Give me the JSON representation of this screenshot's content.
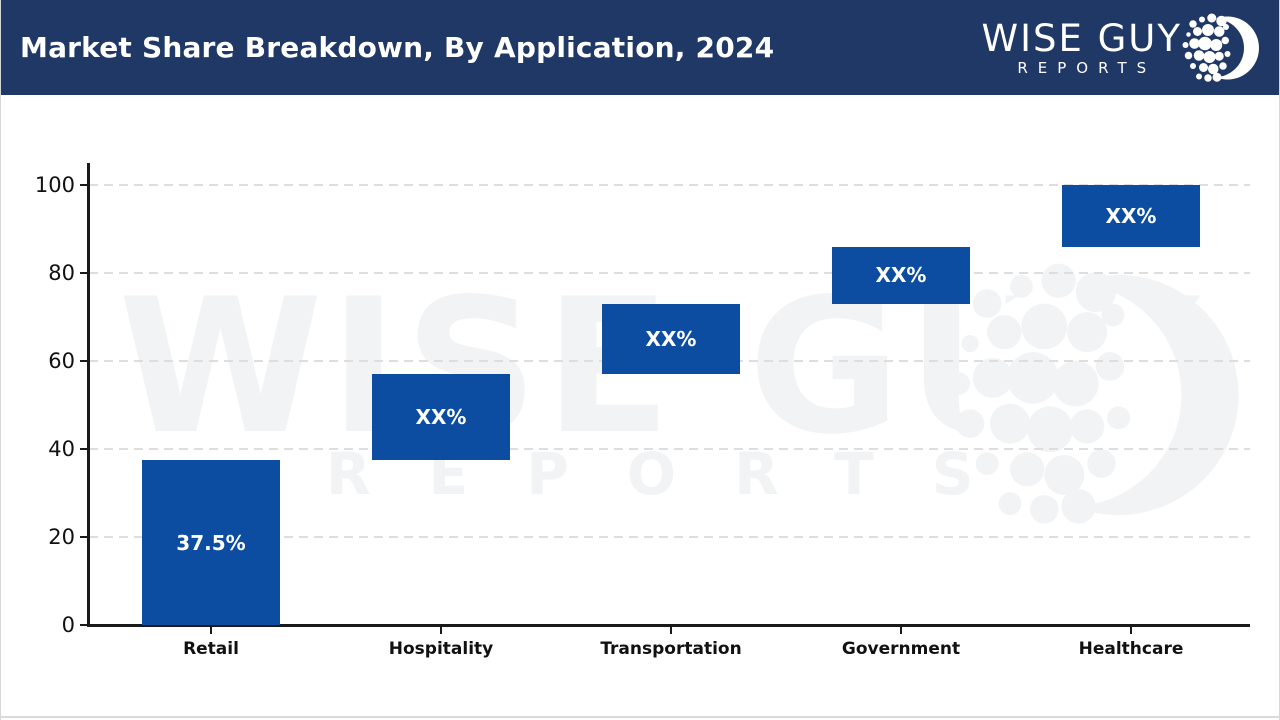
{
  "header": {
    "bg_color": "#1F3866",
    "title": "Market Share Breakdown, By Application, 2024",
    "logo": {
      "line1": "WISE GUY",
      "line2": "REPORTS"
    }
  },
  "watermark": {
    "line1": "WISE GUY",
    "line2": "REPORTS",
    "color": "#f2f3f5"
  },
  "frame": {
    "border_color": "#d6d6d6",
    "bottom_rule_color": "#d9d9d9"
  },
  "chart_data": {
    "type": "bar",
    "subtype": "waterfall",
    "title": "Market Share Breakdown, By Application, 2024",
    "categories": [
      "Retail",
      "Hospitality",
      "Transportation",
      "Government",
      "Healthcare"
    ],
    "segments": [
      {
        "category": "Retail",
        "start": 0,
        "end": 37.5,
        "label": "37.5%"
      },
      {
        "category": "Hospitality",
        "start": 37.5,
        "end": 57,
        "label": "XX%"
      },
      {
        "category": "Transportation",
        "start": 57,
        "end": 73,
        "label": "XX%"
      },
      {
        "category": "Government",
        "start": 73,
        "end": 86,
        "label": "XX%"
      },
      {
        "category": "Healthcare",
        "start": 86,
        "end": 100,
        "label": "XX%"
      }
    ],
    "ytick_labels": [
      "0",
      "20",
      "40",
      "60",
      "80",
      "100"
    ],
    "yticks": [
      0,
      20,
      40,
      60,
      80,
      100
    ],
    "ylim": [
      0,
      105
    ],
    "xlabel": "",
    "ylabel": "",
    "grid": "horizontal-dashed",
    "legend": "none",
    "bar_color": "#0C4DA2",
    "bar_label_color": "#ffffff",
    "grid_color": "#dedede",
    "axis_color": "#1a1a1a",
    "tick_label_color": "#111111"
  }
}
